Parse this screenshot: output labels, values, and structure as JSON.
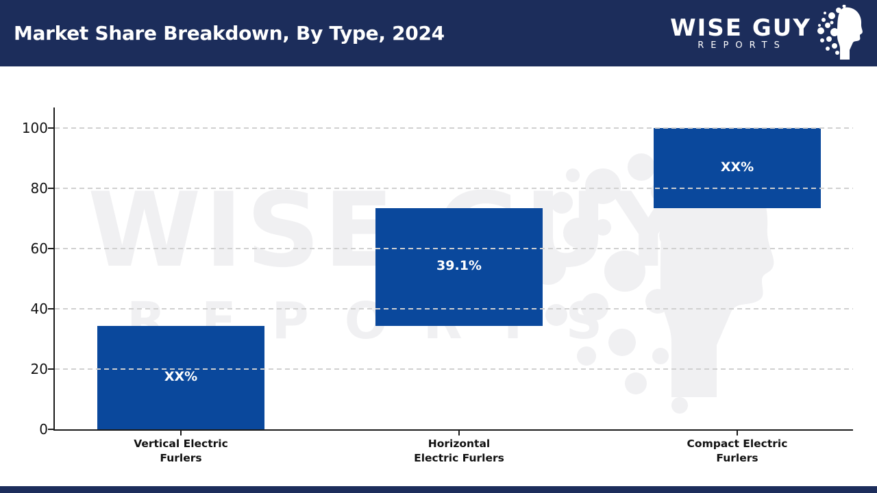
{
  "header": {
    "title": "Market Share Breakdown, By Type, 2024",
    "logo": {
      "line1": "WISE GUY",
      "line2": "REPORTS"
    }
  },
  "watermark": {
    "line1": "WISE GUY",
    "line2": "REPORTS"
  },
  "colors": {
    "header_bg": "#1c2d5b",
    "footer_bg": "#1c2d5b",
    "bar": "#0a489c",
    "bar_label": "#ffffff",
    "gridline": "#d0d0d0",
    "axis": "#1a1a1a",
    "watermark": "#f0f0f2"
  },
  "chart_data": {
    "type": "bar",
    "subtype": "waterfall-stacked-breakdown",
    "title": "Market Share Breakdown, By Type, 2024",
    "categories": [
      "Vertical Electric\nFurlers",
      "Horizontal\nElectric Furlers",
      "Compact Electric\nFurlers"
    ],
    "segments": [
      {
        "category": "Vertical Electric Furlers",
        "start": 0,
        "end": 34.3,
        "label": "XX%"
      },
      {
        "category": "Horizontal Electric Furlers",
        "start": 34.3,
        "end": 73.4,
        "label": "39.1%"
      },
      {
        "category": "Compact Electric Furlers",
        "start": 73.4,
        "end": 100,
        "label": "XX%"
      }
    ],
    "xlabel": "",
    "ylabel": "",
    "yticks": [
      0,
      20,
      40,
      60,
      80,
      100
    ],
    "ylim": [
      0,
      106
    ],
    "grid": "horizontal-dashed-above-bars",
    "legend": "none"
  }
}
